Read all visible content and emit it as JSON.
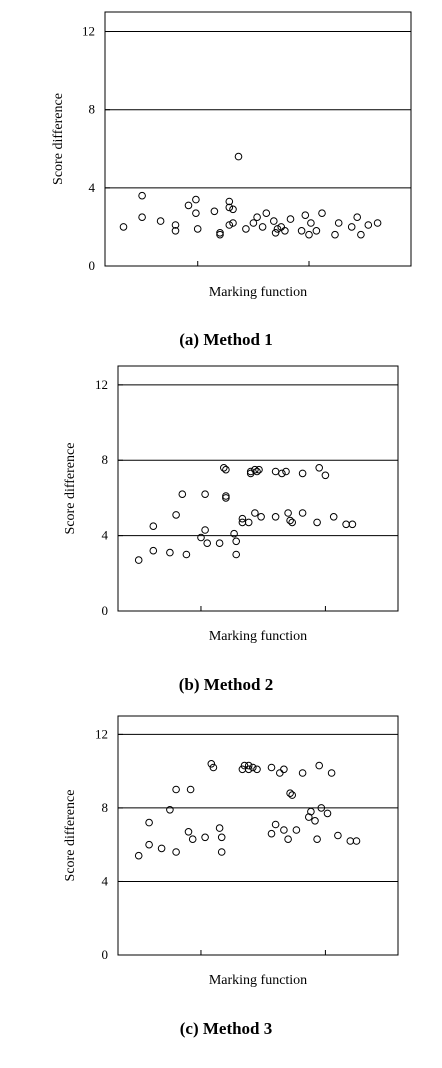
{
  "chart_data": [
    {
      "type": "scatter",
      "caption": "(a) Method 1",
      "xlabel": "Marking function",
      "ylabel": "Score difference",
      "ylim": [
        0,
        13
      ],
      "yticks": [
        "0",
        "4",
        "8",
        "12"
      ],
      "grid": "horizontal",
      "points": [
        [
          1.0,
          2.0
        ],
        [
          2.0,
          3.6
        ],
        [
          2.0,
          2.5
        ],
        [
          3.0,
          2.3
        ],
        [
          3.8,
          2.1
        ],
        [
          3.8,
          1.8
        ],
        [
          4.5,
          3.1
        ],
        [
          4.9,
          3.4
        ],
        [
          4.9,
          2.7
        ],
        [
          5.0,
          1.9
        ],
        [
          5.9,
          2.8
        ],
        [
          6.2,
          1.7
        ],
        [
          6.2,
          1.6
        ],
        [
          6.7,
          3.3
        ],
        [
          6.7,
          3.0
        ],
        [
          6.9,
          2.9
        ],
        [
          6.7,
          2.1
        ],
        [
          6.9,
          2.2
        ],
        [
          7.2,
          5.6
        ],
        [
          7.6,
          1.9
        ],
        [
          8.0,
          2.2
        ],
        [
          8.2,
          2.5
        ],
        [
          8.5,
          2.0
        ],
        [
          8.7,
          2.7
        ],
        [
          9.1,
          2.3
        ],
        [
          9.2,
          1.7
        ],
        [
          9.3,
          1.9
        ],
        [
          9.5,
          2.0
        ],
        [
          9.7,
          1.8
        ],
        [
          10.0,
          2.4
        ],
        [
          10.6,
          1.8
        ],
        [
          10.8,
          2.6
        ],
        [
          11.0,
          1.6
        ],
        [
          11.1,
          2.2
        ],
        [
          11.4,
          1.8
        ],
        [
          11.7,
          2.7
        ],
        [
          12.4,
          1.6
        ],
        [
          12.6,
          2.2
        ],
        [
          13.3,
          2.0
        ],
        [
          13.6,
          2.5
        ],
        [
          13.8,
          1.6
        ],
        [
          14.2,
          2.1
        ],
        [
          14.7,
          2.2
        ]
      ]
    },
    {
      "type": "scatter",
      "caption": "(b) Method 2",
      "xlabel": "Marking function",
      "ylabel": "Score difference",
      "ylim": [
        0,
        13
      ],
      "yticks": [
        "0",
        "4",
        "8",
        "12"
      ],
      "grid": "horizontal",
      "points": [
        [
          1.0,
          2.7
        ],
        [
          1.7,
          3.2
        ],
        [
          1.7,
          4.5
        ],
        [
          2.5,
          3.1
        ],
        [
          2.8,
          5.1
        ],
        [
          3.1,
          6.2
        ],
        [
          3.3,
          3.0
        ],
        [
          4.0,
          3.9
        ],
        [
          4.2,
          6.2
        ],
        [
          4.3,
          3.6
        ],
        [
          4.2,
          4.3
        ],
        [
          4.9,
          3.6
        ],
        [
          5.1,
          7.6
        ],
        [
          5.2,
          7.5
        ],
        [
          5.2,
          6.1
        ],
        [
          5.2,
          6.0
        ],
        [
          5.6,
          4.1
        ],
        [
          5.7,
          3.0
        ],
        [
          5.7,
          3.7
        ],
        [
          6.0,
          4.7
        ],
        [
          6.0,
          4.9
        ],
        [
          6.3,
          4.7
        ],
        [
          6.4,
          7.4
        ],
        [
          6.4,
          7.3
        ],
        [
          6.6,
          7.5
        ],
        [
          6.7,
          7.4
        ],
        [
          6.8,
          7.5
        ],
        [
          6.6,
          5.2
        ],
        [
          6.9,
          5.0
        ],
        [
          7.6,
          7.4
        ],
        [
          7.6,
          5.0
        ],
        [
          7.9,
          7.3
        ],
        [
          8.1,
          7.4
        ],
        [
          8.2,
          5.2
        ],
        [
          8.3,
          4.8
        ],
        [
          8.4,
          4.7
        ],
        [
          8.9,
          7.3
        ],
        [
          8.9,
          5.2
        ],
        [
          9.6,
          4.7
        ],
        [
          9.7,
          7.6
        ],
        [
          10.0,
          7.2
        ],
        [
          10.4,
          5.0
        ],
        [
          11.0,
          4.6
        ],
        [
          11.3,
          4.6
        ]
      ]
    },
    {
      "type": "scatter",
      "caption": "(c) Method 3",
      "xlabel": "Marking function",
      "ylabel": "Score difference",
      "ylim": [
        0,
        13
      ],
      "yticks": [
        "0",
        "4",
        "8",
        "12"
      ],
      "grid": "horizontal",
      "points": [
        [
          1.0,
          5.4
        ],
        [
          1.5,
          7.2
        ],
        [
          1.5,
          6.0
        ],
        [
          2.1,
          5.8
        ],
        [
          2.5,
          7.9
        ],
        [
          2.8,
          9.0
        ],
        [
          2.8,
          5.6
        ],
        [
          3.4,
          6.7
        ],
        [
          3.5,
          9.0
        ],
        [
          3.6,
          6.3
        ],
        [
          4.2,
          6.4
        ],
        [
          4.5,
          10.4
        ],
        [
          4.6,
          10.2
        ],
        [
          4.9,
          6.9
        ],
        [
          5.0,
          6.4
        ],
        [
          5.0,
          5.6
        ],
        [
          6.0,
          10.1
        ],
        [
          6.1,
          10.3
        ],
        [
          6.3,
          10.3
        ],
        [
          6.3,
          10.1
        ],
        [
          6.5,
          10.2
        ],
        [
          6.7,
          10.1
        ],
        [
          7.4,
          10.2
        ],
        [
          7.4,
          6.6
        ],
        [
          7.6,
          7.1
        ],
        [
          7.8,
          9.9
        ],
        [
          8.0,
          10.1
        ],
        [
          8.0,
          6.8
        ],
        [
          8.2,
          6.3
        ],
        [
          8.3,
          8.8
        ],
        [
          8.4,
          8.7
        ],
        [
          8.6,
          6.8
        ],
        [
          8.9,
          9.9
        ],
        [
          9.2,
          7.5
        ],
        [
          9.3,
          7.8
        ],
        [
          9.5,
          7.3
        ],
        [
          9.6,
          6.3
        ],
        [
          9.7,
          10.3
        ],
        [
          9.8,
          8.0
        ],
        [
          10.1,
          7.7
        ],
        [
          10.3,
          9.9
        ],
        [
          10.6,
          6.5
        ],
        [
          11.2,
          6.2
        ],
        [
          11.5,
          6.2
        ]
      ]
    }
  ]
}
